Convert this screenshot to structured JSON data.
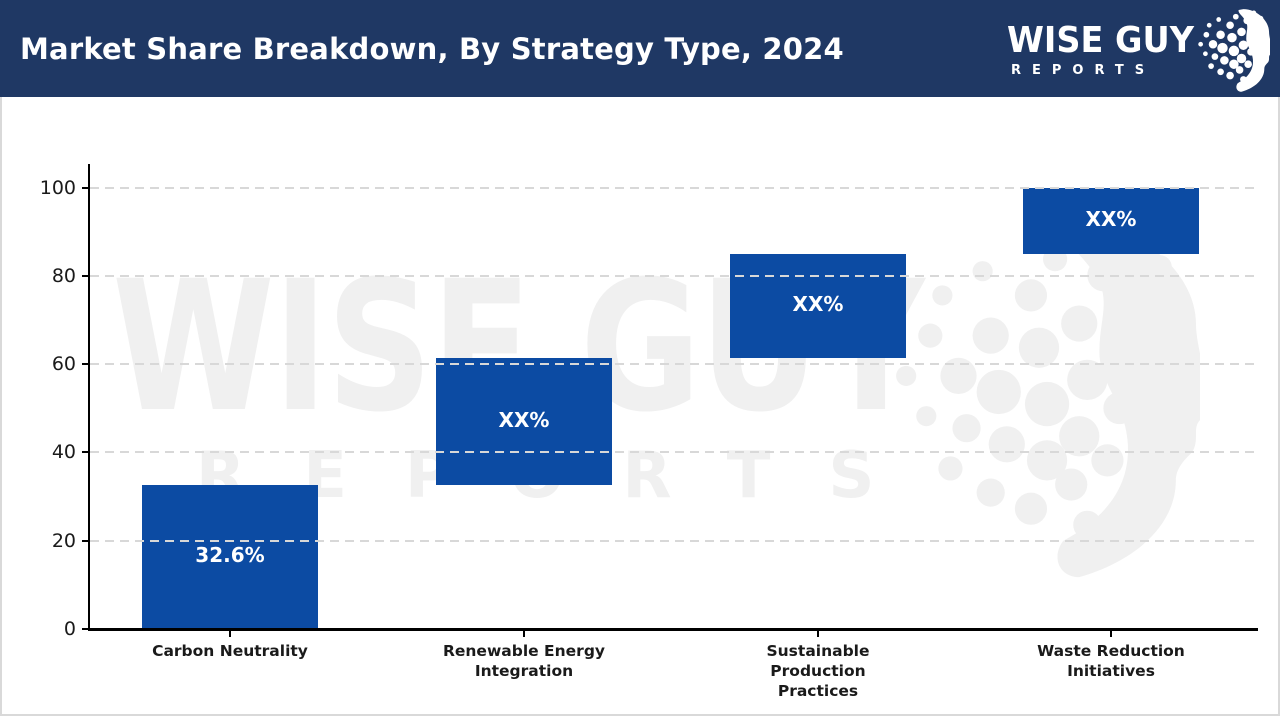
{
  "header": {
    "title": "Market Share Breakdown, By Strategy Type, 2024",
    "bg_color": "#1f3864",
    "text_color": "#ffffff",
    "logo": {
      "line1": "WISE GUY",
      "line2": "REPORTS"
    }
  },
  "watermark": {
    "line1": "WISE GUY",
    "line2": "REPORTS",
    "color": "#f0f0f0"
  },
  "chart_data": {
    "type": "bar",
    "subtype": "waterfall",
    "title": "Market Share Breakdown, By Strategy Type, 2024",
    "categories": [
      "Carbon Neutrality",
      "Renewable Energy Integration",
      "Sustainable Production Practices",
      "Waste Reduction Initiatives"
    ],
    "categories_display": [
      "Carbon Neutrality",
      "Renewable Energy\nIntegration",
      "Sustainable\nProduction\nPractices",
      "Waste Reduction\nInitiatives"
    ],
    "segments": [
      {
        "category": "Carbon Neutrality",
        "start": 0,
        "end": 32.6,
        "label": "32.6%"
      },
      {
        "category": "Renewable Energy Integration",
        "start": 32.6,
        "end": 61.3,
        "label": "XX%"
      },
      {
        "category": "Sustainable Production Practices",
        "start": 61.3,
        "end": 85.0,
        "label": "XX%"
      },
      {
        "category": "Waste Reduction Initiatives",
        "start": 85.0,
        "end": 100.0,
        "label": "XX%"
      }
    ],
    "yticks": [
      0,
      20,
      40,
      60,
      80,
      100
    ],
    "ylim": [
      0,
      105.5
    ],
    "xlabel": "",
    "ylabel": "",
    "grid": "horizontal-dashed",
    "legend": "none",
    "bar_color": "#0c4ba3",
    "grid_color": "#d8d8d8",
    "axis_color": "#000000",
    "bar_label_color": "#ffffff",
    "tick_label_color": "#1a1a1a"
  }
}
